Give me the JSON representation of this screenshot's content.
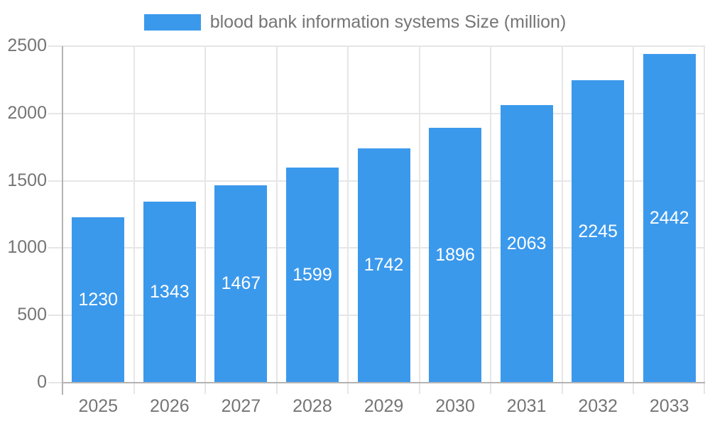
{
  "chart_data": {
    "type": "bar",
    "title": "blood bank information systems Size (million)",
    "legend": {
      "label": "blood bank information systems Size (million)",
      "position": "top"
    },
    "categories": [
      "2025",
      "2026",
      "2027",
      "2028",
      "2029",
      "2030",
      "2031",
      "2032",
      "2033"
    ],
    "series": [
      {
        "name": "blood bank information systems Size (million)",
        "values": [
          1230,
          1343,
          1467,
          1599,
          1742,
          1896,
          2063,
          2245,
          2442
        ]
      }
    ],
    "value_labels": [
      1230,
      1343,
      1467,
      1599,
      1742,
      1896,
      2063,
      2245,
      2442
    ],
    "value_label_position": "inside-center",
    "xlabel": "",
    "ylabel": "",
    "ylim": [
      0,
      2500
    ],
    "yticks": [
      0,
      500,
      1000,
      1500,
      2000,
      2500
    ],
    "grid": true,
    "colors": {
      "bar": "#3b99ec",
      "tick_text": "#757575",
      "gridline": "#e6e6e6",
      "axis": "#b3b3b3",
      "value_label": "#ffffff",
      "background": "#ffffff"
    }
  }
}
